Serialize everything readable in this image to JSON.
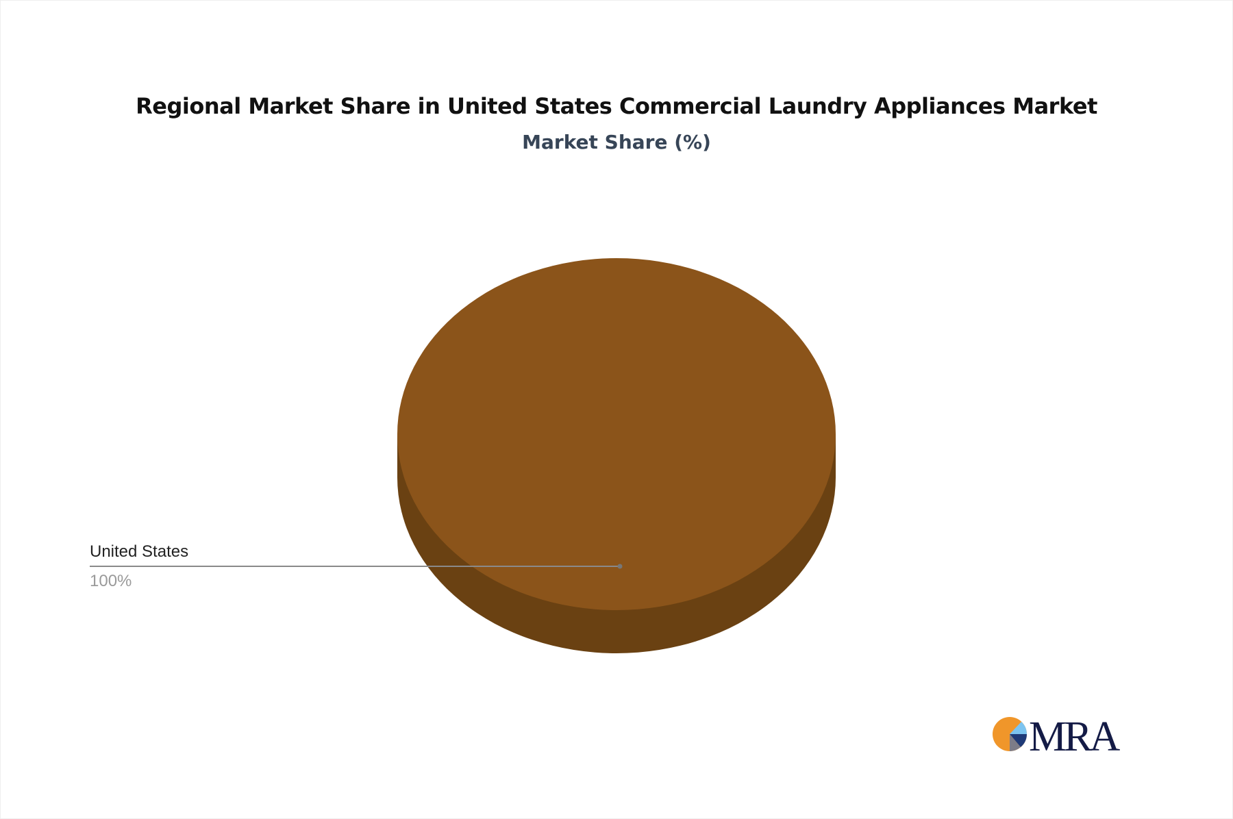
{
  "chart_data": {
    "type": "pie",
    "style": "3d",
    "title": "Regional Market Share in United States Commercial Laundry Appliances Market",
    "subtitle": "Market Share (%)",
    "slices": [
      {
        "label": "United States",
        "value": 100,
        "value_label": "100%",
        "color": "#8B541A",
        "side_color": "#6A4112"
      }
    ],
    "legend": "none"
  },
  "logo": {
    "text": "MRA",
    "colors": [
      "#F0962A",
      "#7CC4F0",
      "#1E3A78",
      "#7C7C88",
      "#141B46"
    ]
  }
}
